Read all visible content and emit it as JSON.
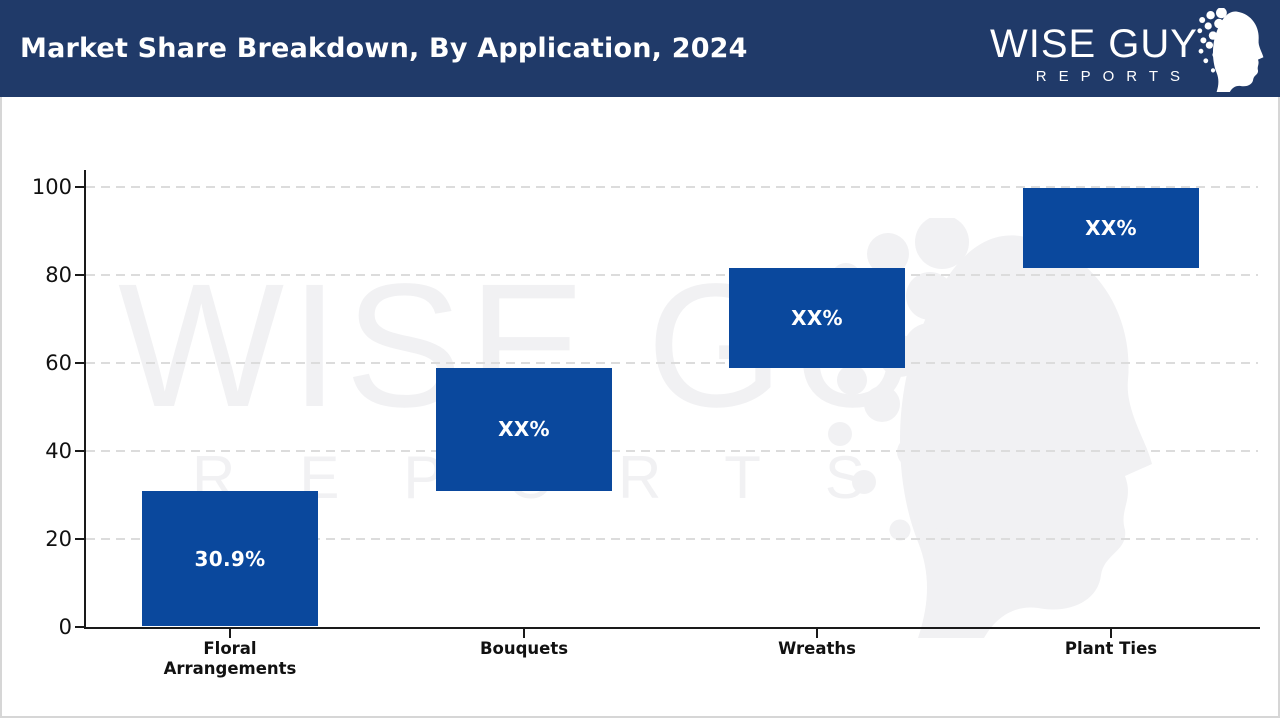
{
  "header": {
    "title": "Market Share Breakdown, By Application, 2024",
    "logo": {
      "line1": "WISE GUY",
      "line2": "REPORTS"
    }
  },
  "watermark": {
    "line1": "WISE GUY",
    "line2": "REPORTS"
  },
  "colors": {
    "header_bg": "#203a69",
    "bar": "#0a489d",
    "grid": "#dcdcdc",
    "axis": "#1a1a1a",
    "watermark": "#f1f1f3",
    "bar_label": "#ffffff"
  },
  "chart_data": {
    "type": "bar",
    "subtype": "waterfall",
    "title": "Market Share Breakdown, By Application, 2024",
    "categories": [
      "Floral\nArrangements",
      "Bouquets",
      "Wreaths",
      "Plant Ties"
    ],
    "segments": [
      {
        "category": "Floral\nArrangements",
        "start": 0,
        "end": 30.9,
        "label": "30.9%"
      },
      {
        "category": "Bouquets",
        "start": 30.9,
        "end": 58.7,
        "label": "XX%"
      },
      {
        "category": "Wreaths",
        "start": 58.7,
        "end": 81.4,
        "label": "XX%"
      },
      {
        "category": "Plant Ties",
        "start": 81.4,
        "end": 99.7,
        "label": "XX%"
      }
    ],
    "ylim": [
      0,
      100
    ],
    "yticks": [
      0,
      20,
      40,
      60,
      80,
      100
    ],
    "grid": "dashed-horizontal",
    "legend": "none",
    "xlabel": "",
    "ylabel": ""
  }
}
